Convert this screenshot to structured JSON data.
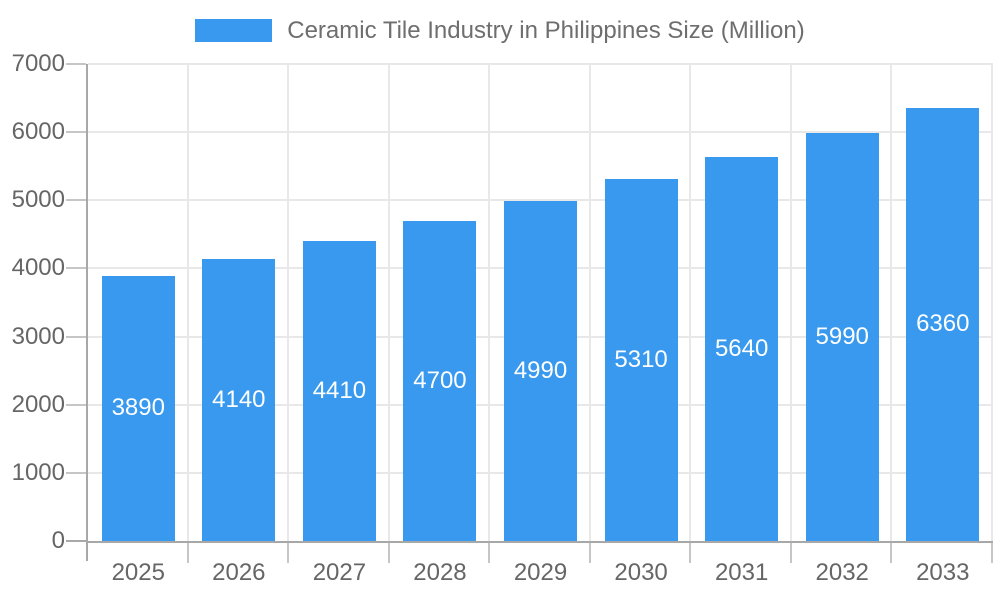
{
  "chart_data": {
    "type": "bar",
    "title": "Ceramic Tile Industry in Philippines Size (Million)",
    "categories": [
      "2025",
      "2026",
      "2027",
      "2028",
      "2029",
      "2030",
      "2031",
      "2032",
      "2033"
    ],
    "values": [
      3890,
      4140,
      4410,
      4700,
      4990,
      5310,
      5640,
      5990,
      6360
    ],
    "xlabel": "",
    "ylabel": "",
    "ylim": [
      0,
      7000
    ],
    "yticks": [
      0,
      1000,
      2000,
      3000,
      4000,
      5000,
      6000,
      7000
    ],
    "grid": true,
    "legend_position": "top",
    "value_labels_position": "center-inside-bar",
    "colors": {
      "bar": "#3899ee",
      "grid": "#e8e8e8",
      "axis": "#a8a8a8",
      "tick": "#c6c6c6",
      "tick_text": "#666666",
      "legend_text": "#6e6e6e",
      "value_text": "#ffffff",
      "background": "#ffffff"
    }
  }
}
